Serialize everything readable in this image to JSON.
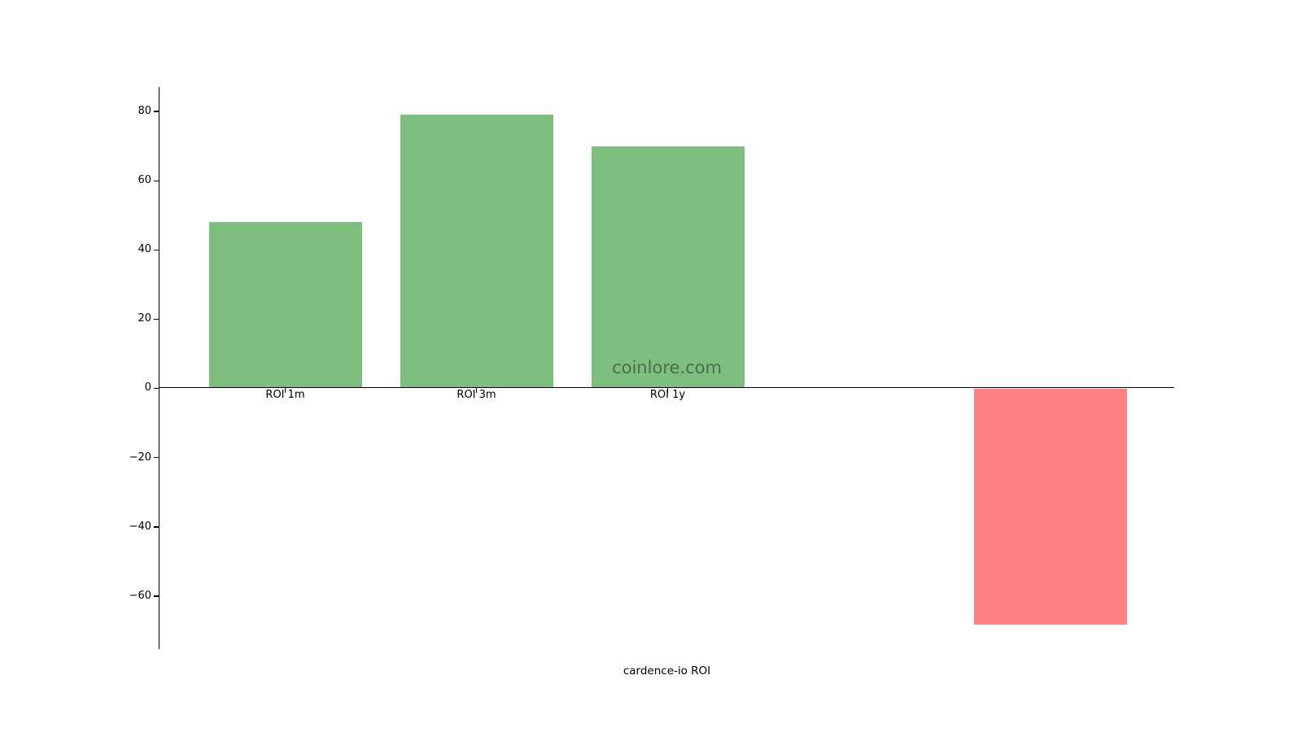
{
  "chart_data": {
    "type": "bar",
    "title": "cardence-io ROI",
    "watermark": "coinlore.com",
    "categories": [
      "ROI 1m",
      "ROI 3m",
      "ROI 1y",
      "",
      ""
    ],
    "values": [
      48,
      79,
      70,
      null,
      -68
    ],
    "bar_colors": [
      "#7ebe7e",
      "#7ebe7e",
      "#7ebe7e",
      null,
      "#fc8383"
    ],
    "positive_color": "#7ebe7e",
    "negative_color": "#fc8383",
    "axis_color": "#000000",
    "xlabel": "",
    "ylabel": "",
    "yticks": [
      80,
      60,
      40,
      20,
      0,
      -20,
      -40,
      -60
    ],
    "ylim": [
      -75.3,
      86.8
    ],
    "grid": false,
    "legend": false
  }
}
